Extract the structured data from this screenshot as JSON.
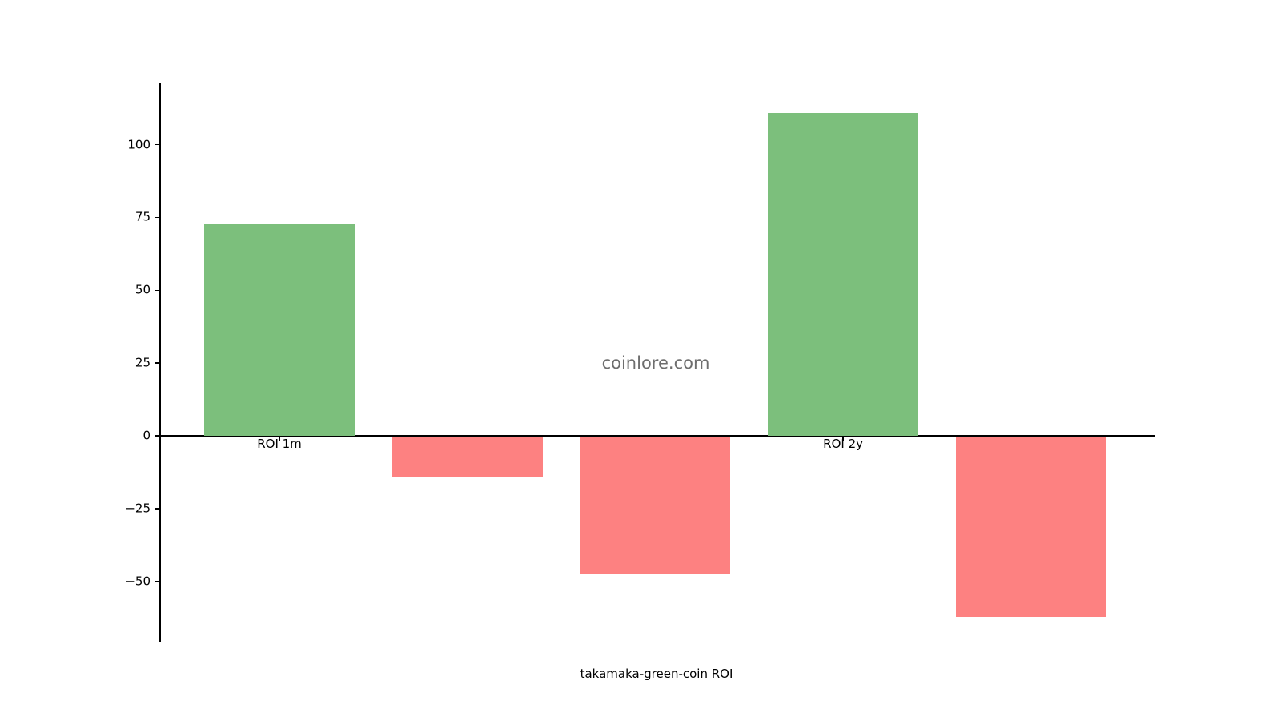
{
  "chart_data": {
    "type": "bar",
    "title": "takamaka-green-coin ROI",
    "watermark": "coinlore.com",
    "categories": [
      "ROI 1m",
      "",
      "",
      "ROI 2y",
      ""
    ],
    "values": [
      73,
      -14,
      -47,
      111,
      -62
    ],
    "bar_colors": [
      "#7CBF7C",
      "#FD8181",
      "#FD8181",
      "#7CBF7C",
      "#FD8181"
    ],
    "positive_color": "#7CBF7C",
    "negative_color": "#FD8181",
    "y_tick_values": [
      100,
      75,
      50,
      25,
      0,
      -25,
      -50
    ],
    "y_tick_labels": [
      "100",
      "75",
      "50",
      "25",
      "0",
      "−25",
      "−50"
    ],
    "ylim": [
      -71,
      121
    ],
    "xlabel": "",
    "ylabel": "",
    "grid": false,
    "legend": false
  }
}
